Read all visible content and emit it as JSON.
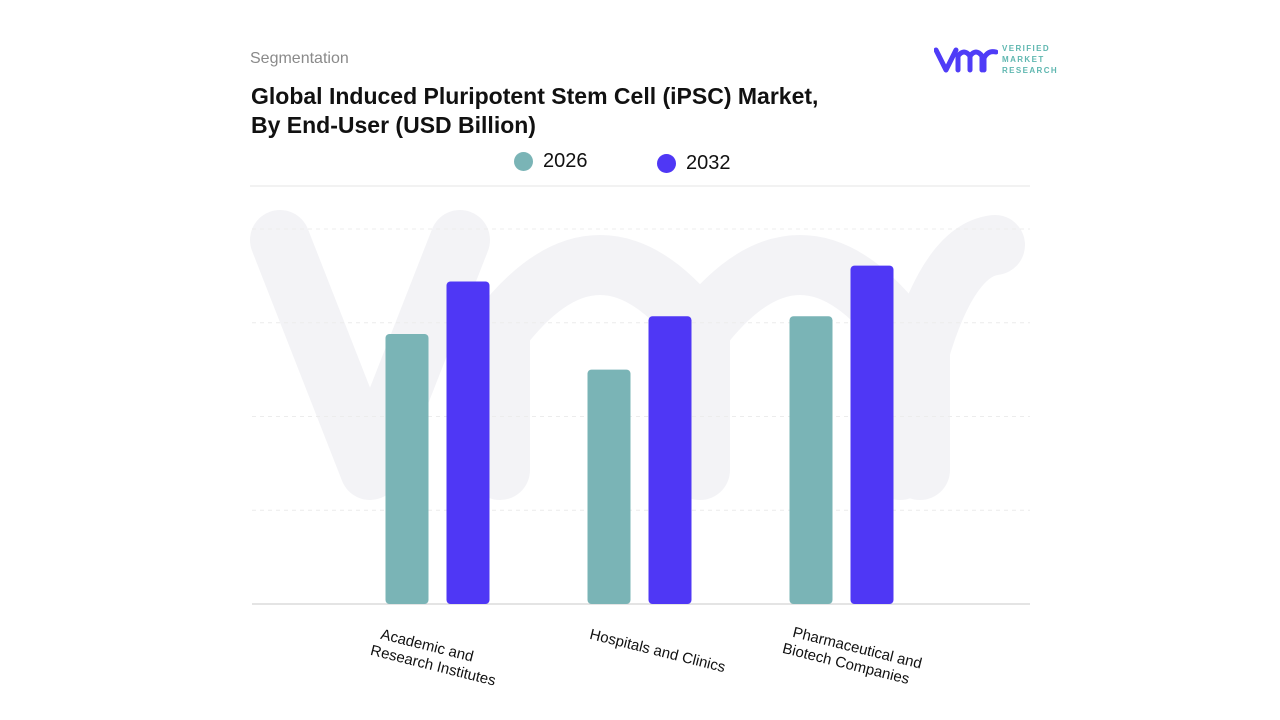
{
  "header": {
    "segment_label": "Segmentation",
    "title_line1": "Global Induced Pluripotent Stem Cell (iPSC) Market,",
    "title_line2": "By End-User (USD Billion)"
  },
  "logo": {
    "text_line1": "VERIFIED",
    "text_line2": "MARKET",
    "text_line3": "RESEARCH",
    "brand_color": "#4f3cf7",
    "text_color": "#5fb7b0"
  },
  "chart_data": {
    "type": "bar",
    "title": "Global Induced Pluripotent Stem Cell (iPSC) Market, By End-User (USD Billion)",
    "categories": [
      "Academic and Research Institutes",
      "Hospitals and Clinics",
      "Pharmaceutical and Biotech Companies"
    ],
    "category_lines": [
      [
        "Academic and",
        "Research Institutes"
      ],
      [
        "Hospitals and Clinics"
      ],
      [
        "Pharmaceutical and",
        "Biotech Companies"
      ]
    ],
    "series": [
      {
        "name": "2026",
        "color": "#7ab4b6",
        "values": [
          2.88,
          2.5,
          3.07
        ]
      },
      {
        "name": "2032",
        "color": "#4f37f5",
        "values": [
          3.44,
          3.07,
          3.61
        ]
      }
    ],
    "ylim": [
      0,
      4
    ],
    "grid": true,
    "legend": "top-center",
    "xlabel": "",
    "ylabel": ""
  }
}
